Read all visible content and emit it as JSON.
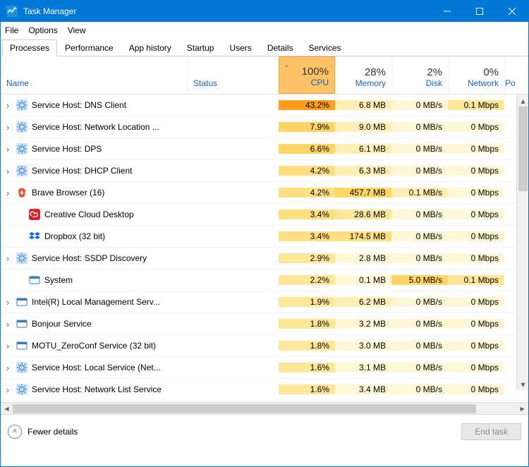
{
  "window": {
    "title": "Task Manager"
  },
  "menubar": [
    "File",
    "Options",
    "View"
  ],
  "tabs": [
    "Processes",
    "Performance",
    "App history",
    "Startup",
    "Users",
    "Details",
    "Services"
  ],
  "activeTab": 0,
  "columns": {
    "name": "Name",
    "status": "Status",
    "truncated": "Po",
    "metrics": [
      {
        "pct": "100%",
        "label": "CPU",
        "sorted": true
      },
      {
        "pct": "28%",
        "label": "Memory",
        "sorted": false
      },
      {
        "pct": "2%",
        "label": "Disk",
        "sorted": false
      },
      {
        "pct": "0%",
        "label": "Network",
        "sorted": false
      }
    ]
  },
  "heat": {
    "levels": [
      "#fff7d6",
      "#ffefb5",
      "#ffe79a",
      "#ffdf80",
      "#ffd666",
      "#ffcb4d",
      "#ffb733",
      "#ff9e1a"
    ],
    "sortedColBase": "#fff3c2"
  },
  "processes": [
    {
      "exp": true,
      "icon": "gear",
      "name": "Service Host: DNS Client",
      "cpu": "43.2%",
      "cpuLvl": 7,
      "mem": "6.8 MB",
      "memLvl": 1,
      "disk": "0 MB/s",
      "diskLvl": 0,
      "net": "0.1 Mbps",
      "netLvl": 2
    },
    {
      "exp": true,
      "icon": "gear",
      "name": "Service Host: Network Location ...",
      "cpu": "7.9%",
      "cpuLvl": 4,
      "mem": "9.0 MB",
      "memLvl": 1,
      "disk": "0 MB/s",
      "diskLvl": 0,
      "net": "0 Mbps",
      "netLvl": 0
    },
    {
      "exp": true,
      "icon": "gear",
      "name": "Service Host: DPS",
      "cpu": "6.6%",
      "cpuLvl": 4,
      "mem": "6.1 MB",
      "memLvl": 1,
      "disk": "0 MB/s",
      "diskLvl": 0,
      "net": "0 Mbps",
      "netLvl": 0
    },
    {
      "exp": true,
      "icon": "gear",
      "name": "Service Host: DHCP Client",
      "cpu": "4.2%",
      "cpuLvl": 3,
      "mem": "6.3 MB",
      "memLvl": 1,
      "disk": "0 MB/s",
      "diskLvl": 0,
      "net": "0 Mbps",
      "netLvl": 0
    },
    {
      "exp": true,
      "icon": "brave",
      "name": "Brave Browser (16)",
      "cpu": "4.2%",
      "cpuLvl": 3,
      "mem": "457.7 MB",
      "memLvl": 4,
      "disk": "0.1 MB/s",
      "diskLvl": 1,
      "net": "0 Mbps",
      "netLvl": 0
    },
    {
      "exp": false,
      "icon": "cc",
      "name": "Creative Cloud Desktop",
      "cpu": "3.4%",
      "cpuLvl": 3,
      "mem": "28.6 MB",
      "memLvl": 2,
      "disk": "0 MB/s",
      "diskLvl": 0,
      "net": "0 Mbps",
      "netLvl": 0
    },
    {
      "exp": false,
      "icon": "dropbox",
      "name": "Dropbox (32 bit)",
      "cpu": "3.4%",
      "cpuLvl": 3,
      "mem": "174.5 MB",
      "memLvl": 3,
      "disk": "0 MB/s",
      "diskLvl": 0,
      "net": "0 Mbps",
      "netLvl": 0
    },
    {
      "exp": true,
      "icon": "gear",
      "name": "Service Host: SSDP Discovery",
      "cpu": "2.9%",
      "cpuLvl": 2,
      "mem": "2.8 MB",
      "memLvl": 0,
      "disk": "0 MB/s",
      "diskLvl": 0,
      "net": "0 Mbps",
      "netLvl": 0
    },
    {
      "exp": false,
      "icon": "app",
      "name": "System",
      "cpu": "2.2%",
      "cpuLvl": 2,
      "mem": "0.1 MB",
      "memLvl": 0,
      "disk": "5.0 MB/s",
      "diskLvl": 4,
      "net": "0.1 Mbps",
      "netLvl": 2
    },
    {
      "exp": true,
      "icon": "app",
      "name": "Intel(R) Local Management Serv...",
      "cpu": "1.9%",
      "cpuLvl": 2,
      "mem": "6.2 MB",
      "memLvl": 1,
      "disk": "0 MB/s",
      "diskLvl": 0,
      "net": "0 Mbps",
      "netLvl": 0
    },
    {
      "exp": true,
      "icon": "app",
      "name": "Bonjour Service",
      "cpu": "1.8%",
      "cpuLvl": 2,
      "mem": "3.2 MB",
      "memLvl": 0,
      "disk": "0 MB/s",
      "diskLvl": 0,
      "net": "0 Mbps",
      "netLvl": 0
    },
    {
      "exp": true,
      "icon": "app",
      "name": "MOTU_ZeroConf Service (32 bit)",
      "cpu": "1.8%",
      "cpuLvl": 2,
      "mem": "3.0 MB",
      "memLvl": 0,
      "disk": "0 MB/s",
      "diskLvl": 0,
      "net": "0 Mbps",
      "netLvl": 0
    },
    {
      "exp": true,
      "icon": "gear",
      "name": "Service Host: Local Service (Net...",
      "cpu": "1.6%",
      "cpuLvl": 2,
      "mem": "3.1 MB",
      "memLvl": 0,
      "disk": "0 MB/s",
      "diskLvl": 0,
      "net": "0 Mbps",
      "netLvl": 0
    },
    {
      "exp": true,
      "icon": "gear",
      "name": "Service Host: Network List Service",
      "cpu": "1.6%",
      "cpuLvl": 2,
      "mem": "3.4 MB",
      "memLvl": 0,
      "disk": "0 MB/s",
      "diskLvl": 0,
      "net": "0 Mbps",
      "netLvl": 0
    }
  ],
  "footer": {
    "fewer": "Fewer details",
    "endtask": "End task"
  }
}
